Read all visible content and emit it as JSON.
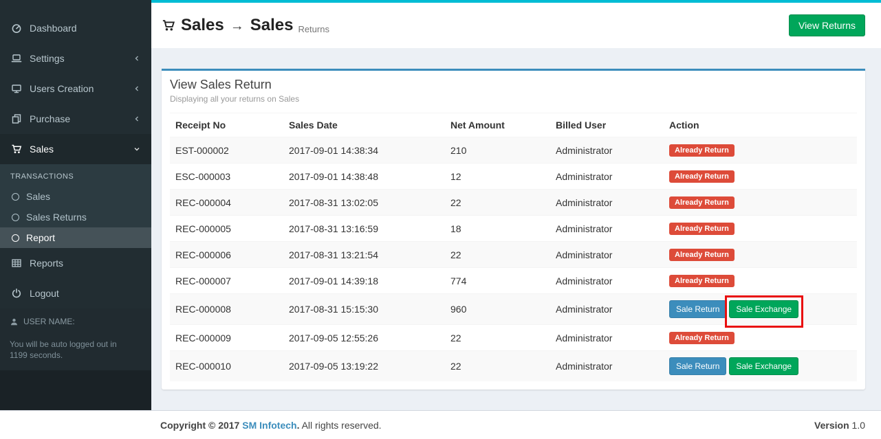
{
  "colors": {
    "topline_teal": "#00bcd4",
    "card_border_blue": "#3c8dbc",
    "badge_red": "#dd4b39",
    "button_blue": "#3c8dbc",
    "button_green": "#00a65a",
    "annotation_red": "#e90e0e",
    "sidebar_bg": "#222d32"
  },
  "sidebar": {
    "items": [
      {
        "label": "Dashboard"
      },
      {
        "label": "Settings"
      },
      {
        "label": "Users Creation"
      },
      {
        "label": "Purchase"
      },
      {
        "label": "Sales"
      }
    ],
    "section_label": "TRANSACTIONS",
    "sub_items": [
      {
        "label": "Sales"
      },
      {
        "label": "Sales Returns"
      },
      {
        "label": "Report"
      }
    ],
    "reports_label": "Reports",
    "logout_label": "Logout",
    "user_label": "USER NAME:",
    "auto_logout_note": "You will be auto logged out in 1199 seconds."
  },
  "header": {
    "breadcrumb_primary": "Sales",
    "arrow": "→",
    "breadcrumb_secondary": "Sales",
    "breadcrumb_sub": "Returns",
    "view_returns_label": "View Returns"
  },
  "card": {
    "title": "View Sales Return",
    "subtitle": "Displaying all your returns on Sales"
  },
  "labels": {
    "already_return": "Already Return",
    "sale_return": "Sale Return",
    "sale_exchange": "Sale Exchange"
  },
  "table": {
    "columns": [
      "Receipt No",
      "Sales Date",
      "Net Amount",
      "Billed User",
      "Action"
    ],
    "rows": [
      {
        "receipt": "EST-000002",
        "date": "2017-09-01 14:38:34",
        "amount": "210",
        "user": "Administrator",
        "actions": [
          "already_return"
        ]
      },
      {
        "receipt": "ESC-000003",
        "date": "2017-09-01 14:38:48",
        "amount": "12",
        "user": "Administrator",
        "actions": [
          "already_return"
        ]
      },
      {
        "receipt": "REC-000004",
        "date": "2017-08-31 13:02:05",
        "amount": "22",
        "user": "Administrator",
        "actions": [
          "already_return"
        ]
      },
      {
        "receipt": "REC-000005",
        "date": "2017-08-31 13:16:59",
        "amount": "18",
        "user": "Administrator",
        "actions": [
          "already_return"
        ]
      },
      {
        "receipt": "REC-000006",
        "date": "2017-08-31 13:21:54",
        "amount": "22",
        "user": "Administrator",
        "actions": [
          "already_return"
        ]
      },
      {
        "receipt": "REC-000007",
        "date": "2017-09-01 14:39:18",
        "amount": "774",
        "user": "Administrator",
        "actions": [
          "already_return"
        ]
      },
      {
        "receipt": "REC-000008",
        "date": "2017-08-31 15:15:30",
        "amount": "960",
        "user": "Administrator",
        "actions": [
          "sale_return",
          "sale_exchange"
        ],
        "annotated": true
      },
      {
        "receipt": "REC-000009",
        "date": "2017-09-05 12:55:26",
        "amount": "22",
        "user": "Administrator",
        "actions": [
          "already_return"
        ]
      },
      {
        "receipt": "REC-000010",
        "date": "2017-09-05 13:19:22",
        "amount": "22",
        "user": "Administrator",
        "actions": [
          "sale_return",
          "sale_exchange"
        ]
      }
    ]
  },
  "footer": {
    "copyright_strong": "Copyright © 2017",
    "brand": "SM Infotech",
    "dot": ".",
    "rights": "All rights reserved.",
    "version_label": "Version",
    "version_value": "1.0"
  }
}
